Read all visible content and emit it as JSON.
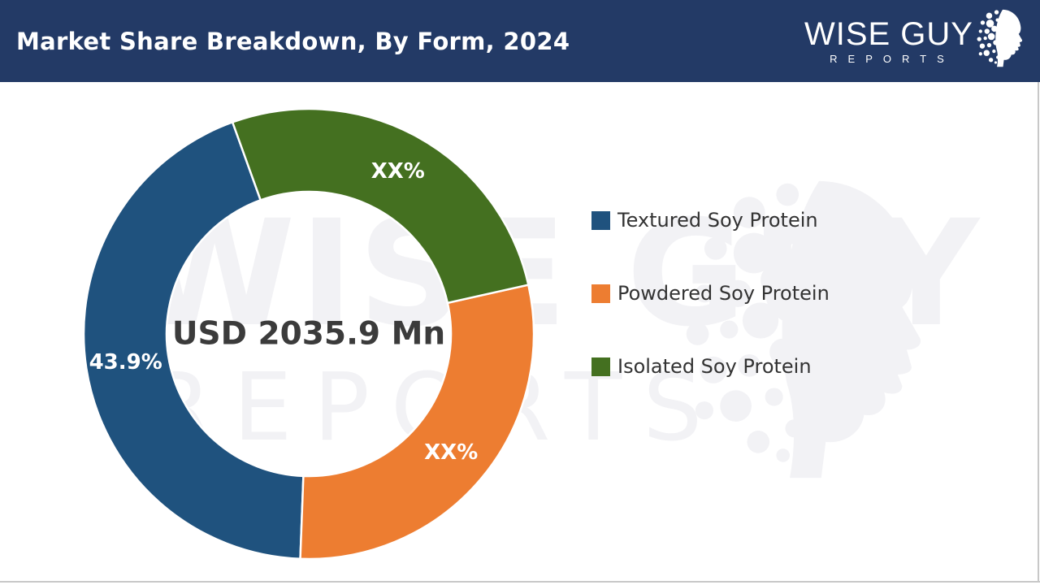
{
  "header": {
    "title": "Market Share Breakdown, By Form, 2024",
    "logo": {
      "line1": "WISE GUY",
      "line2": "REPORTS"
    }
  },
  "chart_data": {
    "type": "pie",
    "subtype": "donut",
    "title": "Market Share Breakdown, By Form, 2024",
    "center_label": "USD 2035.9 Mn",
    "start_angle_deg_cw_from_top": -19.8,
    "direction": "counterclockwise",
    "legend_position": "right",
    "segments": [
      {
        "label": "Textured Soy Protein",
        "display": "43.9%",
        "value_pct": 43.9,
        "color": "#1F527E"
      },
      {
        "label": "Powdered Soy Protein",
        "display": "XX%",
        "value_pct": 29.1,
        "color": "#ED7D31"
      },
      {
        "label": "Isolated Soy Protein",
        "display": "XX%",
        "value_pct": 27.0,
        "color": "#447020"
      }
    ]
  },
  "watermark": {
    "line1": "WISE GUY",
    "line2": "REPORTS"
  },
  "colors": {
    "header_bg": "#233A66",
    "border_line": "#C8C8C8",
    "watermark": "#F2F2F5",
    "legend_text": "#333333",
    "center_text": "#3B3B3B"
  }
}
